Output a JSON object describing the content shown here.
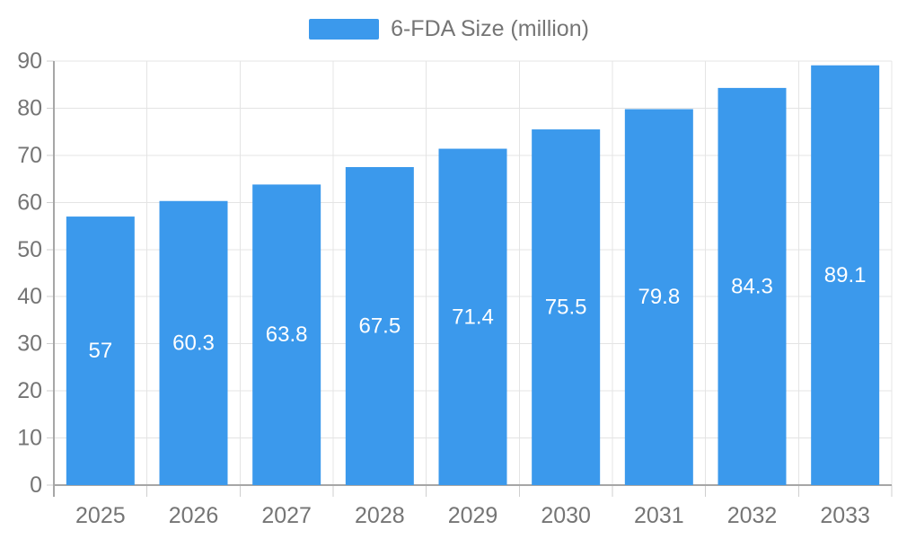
{
  "chart_data": {
    "type": "bar",
    "series_name": "6-FDA Size (million)",
    "categories": [
      "2025",
      "2026",
      "2027",
      "2028",
      "2029",
      "2030",
      "2031",
      "2032",
      "2033"
    ],
    "values": [
      57,
      60.3,
      63.8,
      67.5,
      71.4,
      75.5,
      79.8,
      84.3,
      89.1
    ],
    "value_labels": [
      "57",
      "60.3",
      "63.8",
      "67.5",
      "71.4",
      "75.5",
      "79.8",
      "84.3",
      "89.1"
    ],
    "title": "",
    "xlabel": "",
    "ylabel": "",
    "ylim": [
      0,
      90
    ],
    "ytick_step": 10,
    "ytick_labels": [
      "0",
      "10",
      "20",
      "30",
      "40",
      "50",
      "60",
      "70",
      "80",
      "90"
    ],
    "grid": true,
    "legend_position": "top",
    "colors": {
      "bar": "#3B99EC",
      "bar_value_label": "#FFFFFF",
      "axis_text": "#757575",
      "grid_line": "#E4E4E4",
      "tick_line": "#CFCFCF",
      "axis_line": "#A6A6A6",
      "background": "#FFFFFF"
    }
  }
}
